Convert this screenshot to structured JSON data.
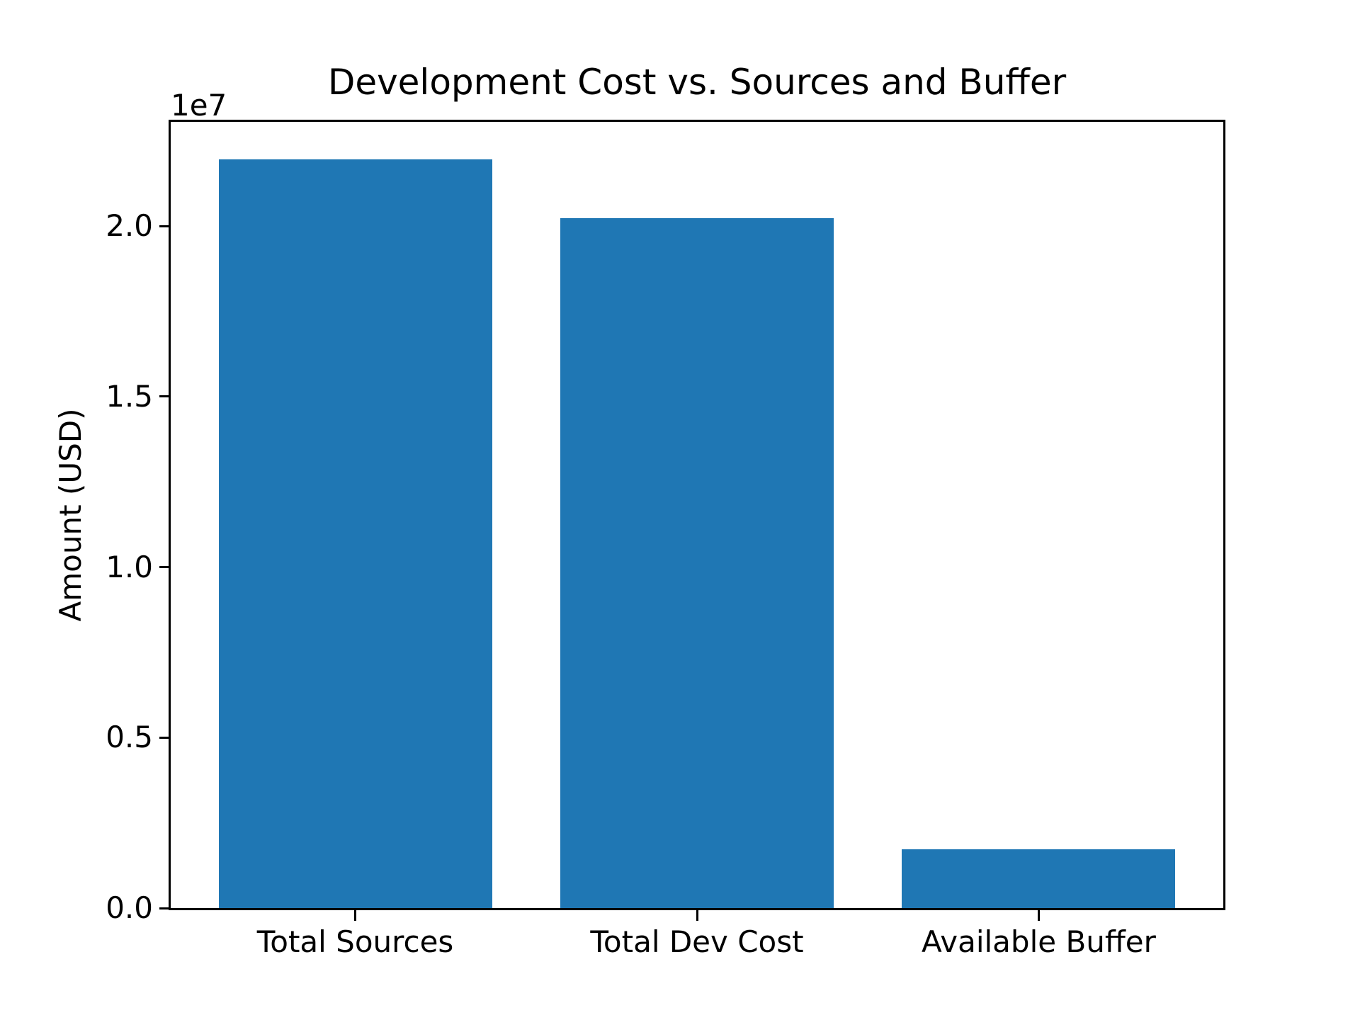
{
  "chart_data": {
    "type": "bar",
    "title": "Development Cost vs. Sources and Buffer",
    "xlabel": "",
    "ylabel": "Amount (USD)",
    "y_offset_text": "1e7",
    "categories": [
      "Total Sources",
      "Total Dev Cost",
      "Available Buffer"
    ],
    "values": [
      21950000,
      20230000,
      1720000
    ],
    "ylim": [
      0,
      23060000
    ],
    "yticks": [
      0,
      5000000,
      10000000,
      15000000,
      20000000
    ],
    "ytick_labels": [
      "0.0",
      "0.5",
      "1.0",
      "1.5",
      "2.0"
    ],
    "bar_color": "#1f77b4",
    "axis_color": "#000000",
    "background_color": "#ffffff",
    "grid": false,
    "legend": "none"
  }
}
